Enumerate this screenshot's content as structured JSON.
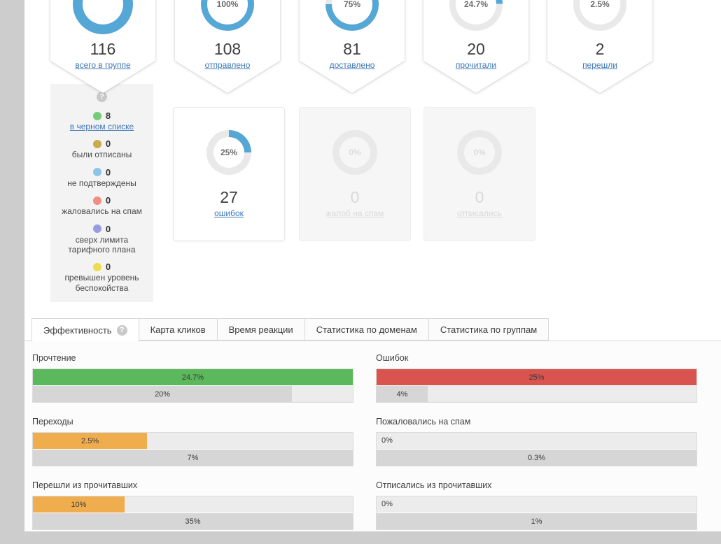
{
  "colors": {
    "accent-blue": "#55a7d5",
    "donut-track": "#e9e9e9",
    "green": "#5cb85c",
    "red": "#d9534f",
    "orange": "#f0ad4e",
    "gray-fill": "#d6d6d6",
    "link-blue": "#3e79b6"
  },
  "summary_cards": [
    {
      "value": "116",
      "link": "всего в группе",
      "donut_pct": 100
    },
    {
      "donut_label": "100%",
      "value": "108",
      "link": "отправлено",
      "donut_pct": 100
    },
    {
      "donut_label": "75%",
      "value": "81",
      "link": "доставлено",
      "donut_pct": 75
    },
    {
      "donut_label": "24.7%",
      "value": "20",
      "link": "прочитали",
      "donut_pct": 24.7
    },
    {
      "donut_label": "2.5%",
      "value": "2",
      "link": "перешли",
      "donut_pct": 2.5
    }
  ],
  "legend": {
    "help": "?",
    "items": [
      {
        "color": "#76cc76",
        "value": "8",
        "label": "в черном списке"
      },
      {
        "color": "#c9ad49",
        "value": "0",
        "label": "были отписаны"
      },
      {
        "color": "#8cc5e8",
        "value": "0",
        "label": "не подтверждены"
      },
      {
        "color": "#f08d84",
        "value": "0",
        "label": "жаловались на спам"
      },
      {
        "color": "#9b9ce0",
        "value": "0",
        "label": "сверх лимита тарифного плана"
      },
      {
        "color": "#f0dc51",
        "value": "0",
        "label": "превышен уровень беспокойства"
      }
    ]
  },
  "stat_cards": [
    {
      "donut_label": "25%",
      "donut_pct": 25,
      "value": "27",
      "link": "ошибок"
    },
    {
      "donut_label": "0%",
      "donut_pct": 0,
      "value": "0",
      "link": "жалоб на спам"
    },
    {
      "donut_label": "0%",
      "donut_pct": 0,
      "value": "0",
      "link": "отписались"
    }
  ],
  "tabs": [
    {
      "label": "Эффективность",
      "help": "?"
    },
    {
      "label": "Карта кликов"
    },
    {
      "label": "Время реакции"
    },
    {
      "label": "Статистика по доменам"
    },
    {
      "label": "Статистика по группам"
    }
  ],
  "metrics": {
    "left": [
      {
        "title": "Прочтение",
        "primary": {
          "label": "24.7%",
          "pct": 100
        },
        "secondary": {
          "label": "20%",
          "pct": 81
        }
      },
      {
        "title": "Переходы",
        "primary": {
          "label": "2.5%",
          "pct": 35.7
        },
        "secondary": {
          "label": "7%",
          "pct": 100
        }
      },
      {
        "title": "Перешли из прочитавших",
        "primary": {
          "label": "10%",
          "pct": 28.6
        },
        "secondary": {
          "label": "35%",
          "pct": 100
        }
      }
    ],
    "right": [
      {
        "title": "Ошибок",
        "primary": {
          "label": "25%",
          "pct": 100
        },
        "secondary": {
          "label": "4%",
          "pct": 16
        }
      },
      {
        "title": "Пожаловались на спам",
        "primary": {
          "label": "0%",
          "pct": 0
        },
        "secondary": {
          "label": "0.3%",
          "pct": 100
        }
      },
      {
        "title": "Отписались из прочитавших",
        "primary": {
          "label": "0%",
          "pct": 0
        },
        "secondary": {
          "label": "1%",
          "pct": 100
        }
      }
    ]
  }
}
